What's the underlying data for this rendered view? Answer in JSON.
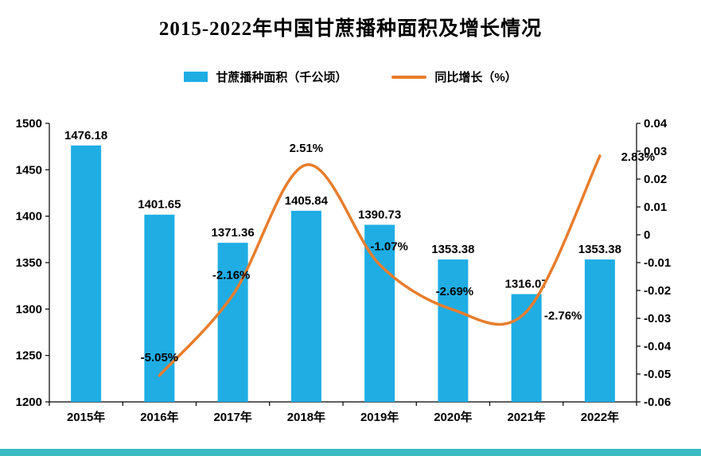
{
  "title": "2015-2022年中国甘蔗播种面积及增长情况",
  "legend": [
    {
      "label": "甘蔗播种面积（千公顷）",
      "type": "bar",
      "color": "#1FADE4"
    },
    {
      "label": "同比增长（%）",
      "type": "line",
      "color": "#E87D2C"
    }
  ],
  "colors": {
    "bar": "#1FADE4",
    "line": "#E87D2C",
    "axis": "#000000",
    "label_text": "#000000",
    "accent_bottom_bar": "#3BBCC4",
    "background": "#FFFFFF"
  },
  "chart_data": {
    "type": "bar",
    "subtype": "combo-bar-line",
    "title": "2015-2022年中国甘蔗播种面积及增长情况",
    "categories": [
      "2015年",
      "2016年",
      "2017年",
      "2018年",
      "2019年",
      "2020年",
      "2021年",
      "2022年"
    ],
    "series": [
      {
        "name": "甘蔗播种面积（千公顷）",
        "type": "bar",
        "axis": "left",
        "color": "#1FADE4",
        "values": [
          1476.18,
          1401.65,
          1371.36,
          1405.84,
          1390.73,
          1353.38,
          1316.07,
          1353.38
        ],
        "labels": [
          "1476.18",
          "1401.65",
          "1371.36",
          "1405.84",
          "1390.73",
          "1353.38",
          "1316.07",
          "1353.38"
        ]
      },
      {
        "name": "同比增长（%）",
        "type": "line",
        "axis": "right",
        "color": "#E87D2C",
        "values": [
          null,
          -0.0505,
          -0.0216,
          0.0251,
          -0.0107,
          -0.0269,
          -0.0276,
          0.0283
        ],
        "labels": [
          null,
          "-5.05%",
          "-2.16%",
          "2.51%",
          "-1.07%",
          "-2.69%",
          "-2.76%",
          "2.83%"
        ]
      }
    ],
    "left_axis": {
      "min": 1200,
      "max": 1500,
      "step": 50,
      "ticks": [
        "1500",
        "1450",
        "1400",
        "1350",
        "1300",
        "1250",
        "1200"
      ]
    },
    "right_axis": {
      "min": -0.06,
      "max": 0.04,
      "step": 0.01,
      "ticks": [
        "0.04",
        "0.03",
        "0.02",
        "0.01",
        "0",
        "-0.01",
        "-0.02",
        "-0.03",
        "-0.04",
        "-0.05",
        "-0.06"
      ]
    },
    "grid": false,
    "legend_position": "top"
  }
}
